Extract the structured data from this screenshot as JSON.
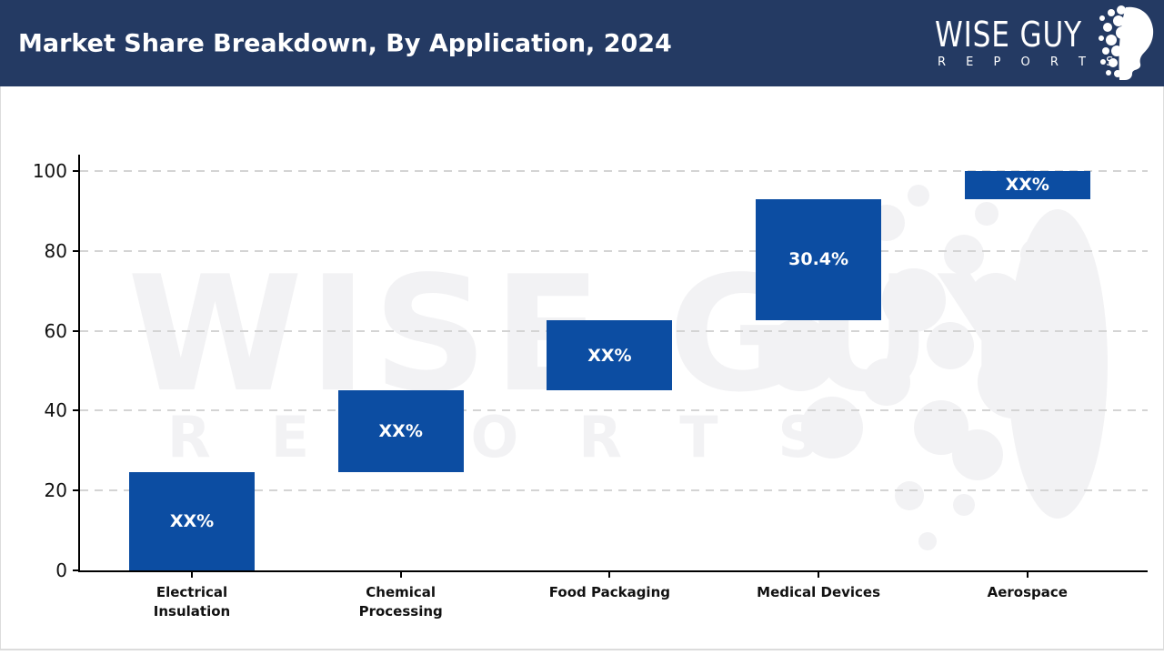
{
  "header": {
    "title": "Market Share Breakdown, By Application, 2024",
    "logo": {
      "wordmark": "WISE GUY",
      "subtext": "R E P O R T S"
    }
  },
  "watermark": {
    "wordmark": "WISE GUY",
    "subtext": "R E P O R T S"
  },
  "colors": {
    "header_bg": "#243a63",
    "bar": "#0c4da2",
    "bar_label_text": "#ffffff",
    "axis": "#000000",
    "gridline": "#d4d4d4",
    "watermark": "#f2f2f4",
    "title_text": "#ffffff"
  },
  "chart_data": {
    "type": "bar",
    "subtype": "floating_segment_waterfall",
    "title": "Market Share Breakdown, By Application, 2024",
    "xlabel": "",
    "ylabel": "",
    "ylim": [
      0,
      104
    ],
    "yticks": [
      0,
      20,
      40,
      60,
      80,
      100
    ],
    "grid": "horizontal-dashed",
    "legend": "none",
    "categories": [
      "Electrical\nInsulation",
      "Chemical\nProcessing",
      "Food Packaging",
      "Medical Devices",
      "Aerospace"
    ],
    "segments": [
      {
        "category": "Electrical\nInsulation",
        "start": 0,
        "end": 24.5,
        "label": "XX%"
      },
      {
        "category": "Chemical\nProcessing",
        "start": 24.5,
        "end": 45.0,
        "label": "XX%"
      },
      {
        "category": "Food Packaging",
        "start": 45.0,
        "end": 62.6,
        "label": "XX%"
      },
      {
        "category": "Medical Devices",
        "start": 62.6,
        "end": 93.0,
        "label": "30.4%"
      },
      {
        "category": "Aerospace",
        "start": 93.0,
        "end": 100.0,
        "label": "XX%"
      }
    ]
  }
}
